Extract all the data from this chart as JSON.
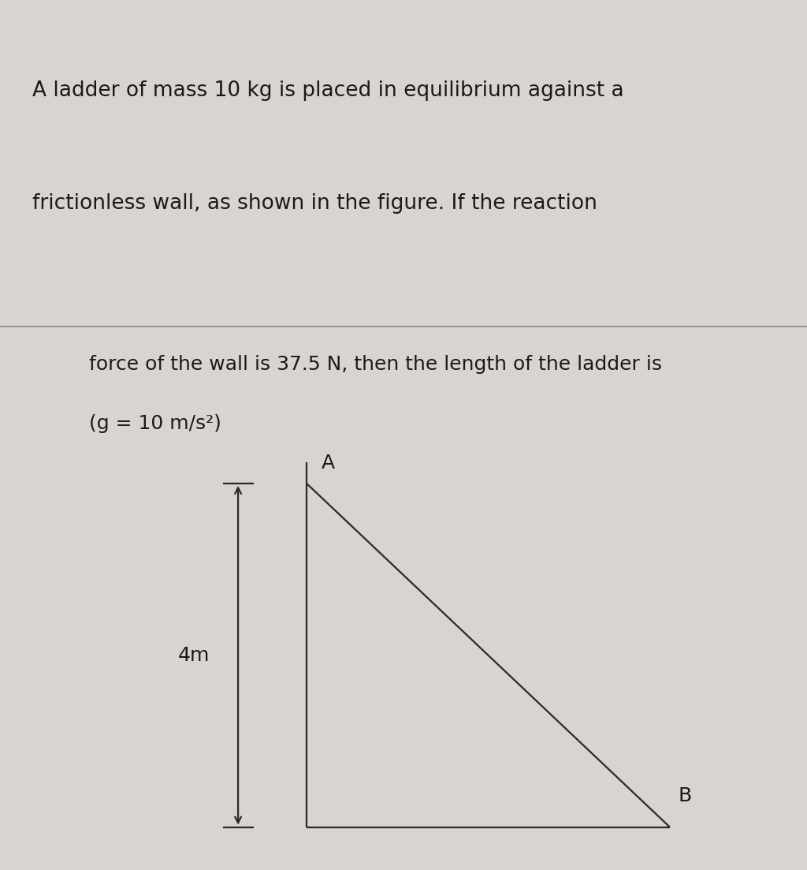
{
  "bg_top": "#e8e4e0",
  "bg_bottom": "#d8d4d0",
  "text_color": "#1a1a1a",
  "line_color": "#2a2a2a",
  "divider_color": "#888888",
  "title_line1": "A ladder of mass 10 kg is placed in equilibrium against a",
  "title_line2": "frictionless wall, as shown in the figure. If the reaction",
  "sub_line1": "force of the wall is 37.5 N, then the length of the ladder is",
  "sub_line2": "(g = 10 m/s²)",
  "title_fontsize": 19,
  "sub_fontsize": 18,
  "label_fontsize": 18,
  "fig_width": 10.24,
  "fig_height": 11.03,
  "dpi": 100
}
